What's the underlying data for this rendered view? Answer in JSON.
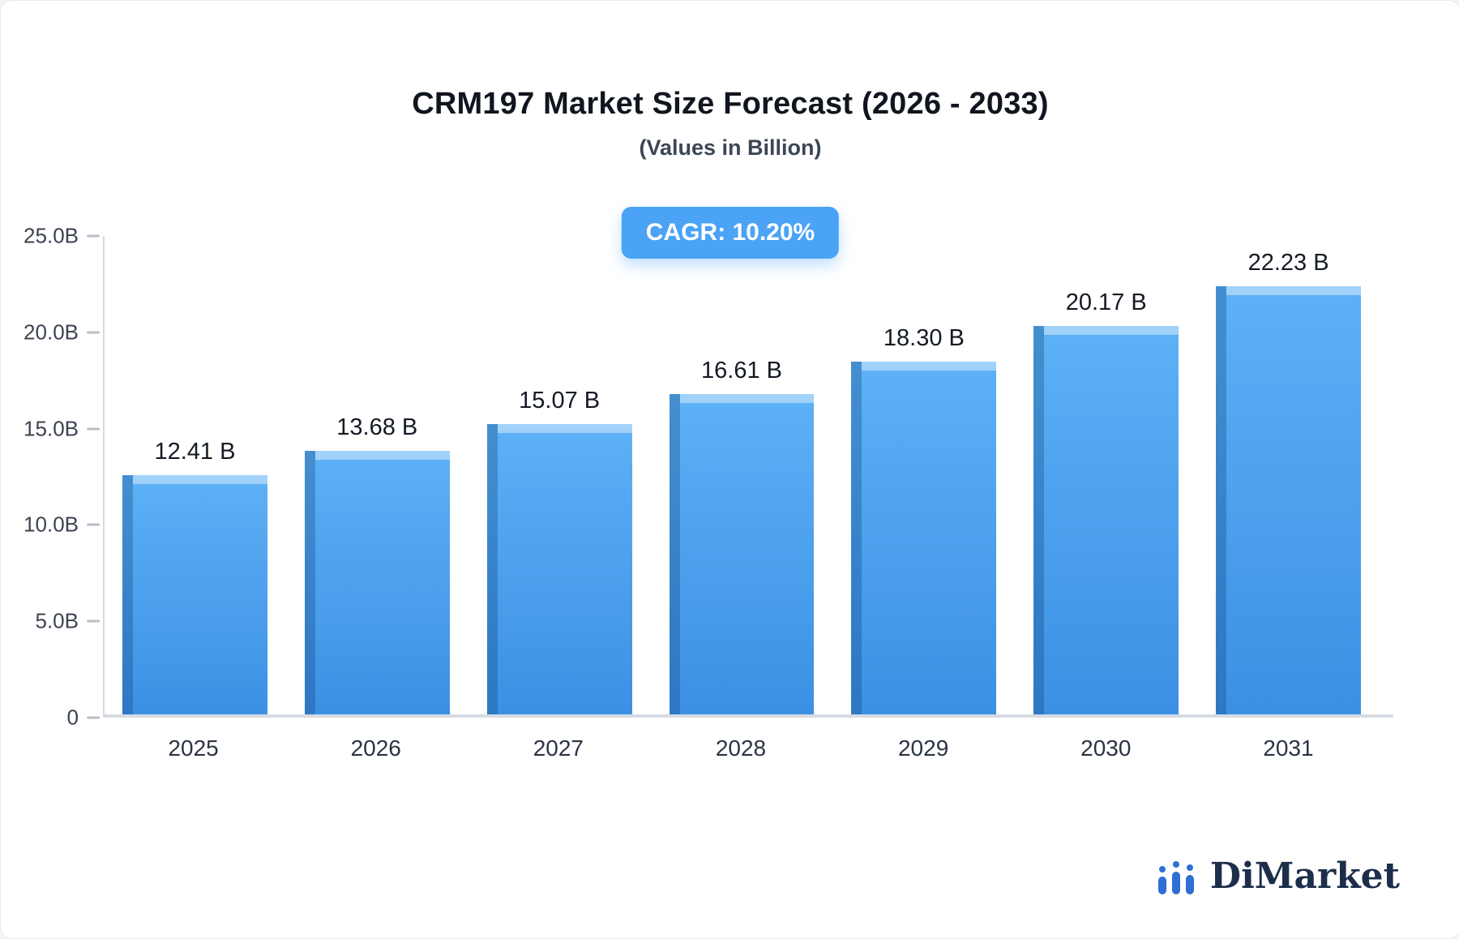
{
  "chart_data": {
    "type": "bar",
    "title": "CRM197 Market Size Forecast (2026 - 2033)",
    "subtitle": "(Values in Billion)",
    "badge": "CAGR: 10.20%",
    "categories": [
      "2025",
      "2026",
      "2027",
      "2028",
      "2029",
      "2030",
      "2031"
    ],
    "values": [
      12.41,
      13.68,
      15.07,
      16.61,
      18.3,
      20.17,
      22.23
    ],
    "value_labels": [
      "12.41 B",
      "13.68 B",
      "15.07 B",
      "16.61 B",
      "18.30 B",
      "20.17 B",
      "22.23 B"
    ],
    "xlabel": "",
    "ylabel": "",
    "ylim": [
      0,
      25
    ],
    "yticks": [
      {
        "value": 0,
        "label": "0"
      },
      {
        "value": 5,
        "label": "5.0B"
      },
      {
        "value": 10,
        "label": "10.0B"
      },
      {
        "value": 15,
        "label": "15.0B"
      },
      {
        "value": 20,
        "label": "20.0B"
      },
      {
        "value": 25,
        "label": "25.0B"
      }
    ],
    "grid": "off",
    "legend": "none"
  },
  "branding": {
    "logo_text": "DiMarket",
    "logo_icon": "bar-chart-icon"
  },
  "colors": {
    "accent": "#4aa3f5",
    "bar_top": "#5db1f6",
    "bar_bottom": "#3c90e4",
    "logo": "#2e6fd3",
    "logo_text": "#1c2e4a"
  }
}
